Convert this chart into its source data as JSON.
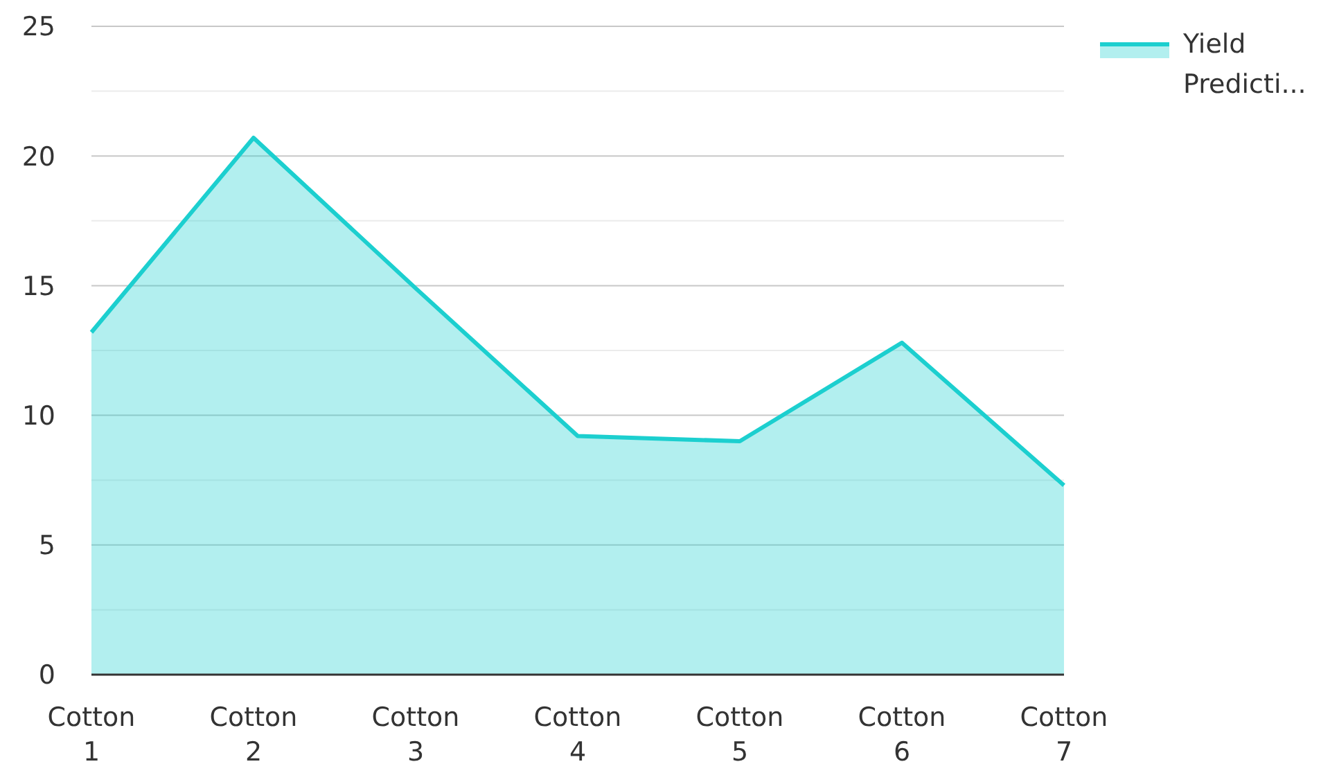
{
  "chart_data": {
    "type": "area",
    "categories": [
      "Cotton 1",
      "Cotton 2",
      "Cotton 3",
      "Cotton 4",
      "Cotton 5",
      "Cotton 6",
      "Cotton 7"
    ],
    "series": [
      {
        "name": "Yield Predicti...",
        "color": "#1ccfcf",
        "values": [
          13.2,
          20.7,
          14.9,
          9.2,
          9.0,
          12.8,
          7.3
        ]
      }
    ],
    "ylim": [
      0,
      25
    ],
    "yticks": [
      0,
      {
        "value": 2.5,
        "label": null
      },
      5,
      {
        "value": 7.5,
        "label": null
      },
      10,
      {
        "value": 12.5,
        "label": null
      },
      15,
      {
        "value": 17.5,
        "label": null
      },
      20,
      {
        "value": 22.5,
        "label": null
      },
      25
    ],
    "grid": "y",
    "legend": "top right"
  }
}
